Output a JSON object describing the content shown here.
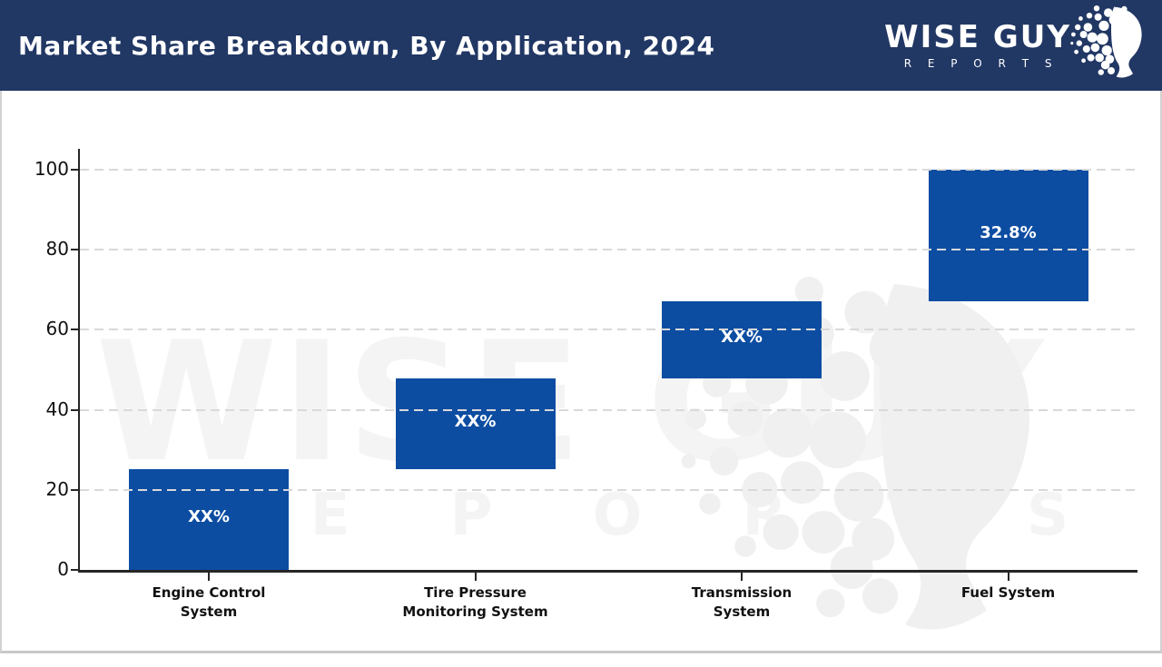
{
  "header": {
    "title": "Market Share Breakdown, By Application, 2024",
    "logo": {
      "line1": "WISE GUY",
      "line2": "R E P O R T S"
    }
  },
  "watermark": {
    "line1": "WISE GUY",
    "line2": "R E P O R T S"
  },
  "colors": {
    "header_bg": "#213764",
    "bar_blue": "#0c4da2",
    "grid_gray": "#d9d9d9",
    "axis_dark": "#262626",
    "watermark_gray": "#f2f2f2"
  },
  "chart_data": {
    "type": "bar",
    "subtype": "waterfall",
    "title": "Market Share Breakdown, By Application, 2024",
    "categories": [
      "Engine Control\nSystem",
      "Tire Pressure\nMonitoring System",
      "Transmission\nSystem",
      "Fuel System"
    ],
    "segments": [
      {
        "category": "Engine Control System",
        "start": 0,
        "end": 25.2,
        "label": "XX%"
      },
      {
        "category": "Tire Pressure Monitoring System",
        "start": 25.2,
        "end": 47.8,
        "label": "XX%"
      },
      {
        "category": "Transmission System",
        "start": 47.8,
        "end": 67.2,
        "label": "XX%"
      },
      {
        "category": "Fuel System",
        "start": 67.2,
        "end": 100,
        "label": "32.8%",
        "value": 32.8
      }
    ],
    "ylim": [
      0,
      100
    ],
    "yticks": [
      0,
      20,
      40,
      60,
      80,
      100
    ],
    "xlabel": "",
    "ylabel": "",
    "grid": "horizontal-dashed",
    "gridlines_above_bars": true,
    "legend": null
  }
}
